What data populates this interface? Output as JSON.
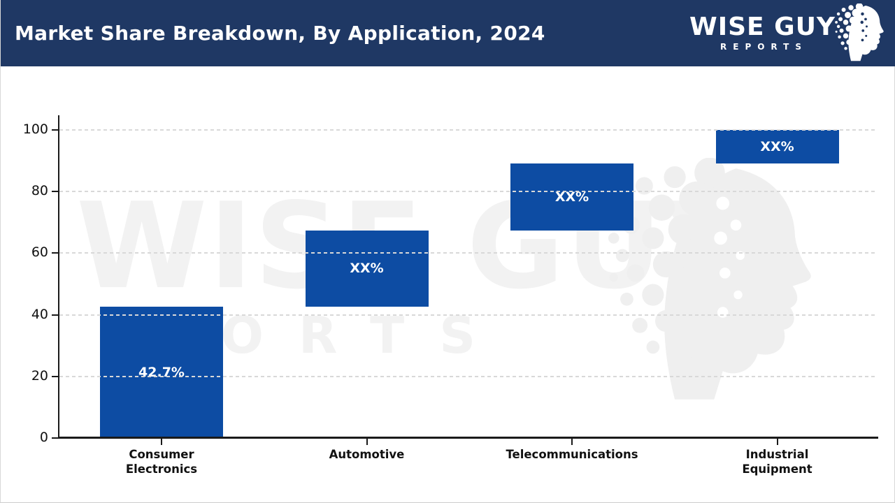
{
  "header": {
    "title": "Market Share Breakdown, By Application, 2024",
    "logo": {
      "line1": "WISE GUY",
      "line2": "REPORTS"
    }
  },
  "watermark": {
    "line1": "WISE GUY",
    "line2": "PORTS"
  },
  "colors": {
    "header_bg": "#1f3864",
    "bar": "#0d4ca3",
    "grid": "#d8d8d8",
    "axis": "#1a1a1a",
    "bar_label_text": "#ffffff",
    "watermark": "#f2f2f2"
  },
  "chart_data": {
    "type": "bar",
    "subtype": "waterfall",
    "title": "Market Share Breakdown, By Application, 2024",
    "xlabel": "",
    "ylabel": "",
    "ylim": [
      0,
      105
    ],
    "y_ticks": [
      0,
      20,
      40,
      60,
      80,
      100
    ],
    "grid": "horizontal-dashed",
    "legend": "none",
    "categories": [
      "Consumer Electronics",
      "Automotive",
      "Telecommunications",
      "Industrial Equipment"
    ],
    "category_label_lines": [
      [
        "Consumer",
        "Electronics"
      ],
      [
        "Automotive"
      ],
      [
        "Telecommunications"
      ],
      [
        "Industrial",
        "Equipment"
      ]
    ],
    "segments": [
      {
        "category": "Consumer Electronics",
        "start": 0,
        "end": 42.7,
        "label": "42.7%"
      },
      {
        "category": "Automotive",
        "start": 42.7,
        "end": 67.4,
        "label": "XX%"
      },
      {
        "category": "Telecommunications",
        "start": 67.4,
        "end": 89.2,
        "label": "XX%"
      },
      {
        "category": "Industrial Equipment",
        "start": 89.2,
        "end": 100,
        "label": "XX%"
      }
    ]
  }
}
